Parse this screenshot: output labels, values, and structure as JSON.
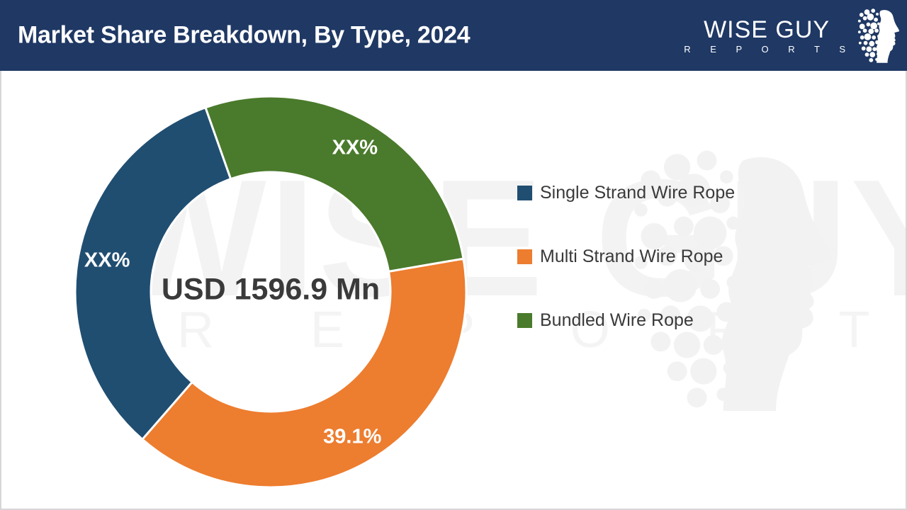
{
  "header": {
    "title": "Market Share Breakdown, By Type, 2024",
    "bg_color": "#1f3864",
    "logo": {
      "line1": "WISE GUY",
      "line2": "R E P O R T S"
    }
  },
  "watermark": {
    "line1": "WISE GUY",
    "line2": "R E P O R T S"
  },
  "chart_data": {
    "type": "donut",
    "title": "Market Share Breakdown, By Type, 2024",
    "center_label": "USD 1596.9 Mn",
    "start_angle_deg": 221,
    "direction": "clockwise",
    "segments": [
      {
        "name": "Single Strand Wire Rope",
        "color": "#204e71",
        "value_pct": 33.2,
        "label": "XX%"
      },
      {
        "name": "Bundled Wire Rope",
        "color": "#4a7a2b",
        "value_pct": 27.7,
        "label": "XX%"
      },
      {
        "name": "Multi Strand Wire Rope",
        "color": "#ed7d2f",
        "value_pct": 39.1,
        "label": "39.1%"
      }
    ],
    "legend_order": [
      0,
      2,
      1
    ],
    "legend_position": "right",
    "separator_color": "#ffffff",
    "label_color": "#ffffff",
    "text_color": "#3a3a3a"
  }
}
